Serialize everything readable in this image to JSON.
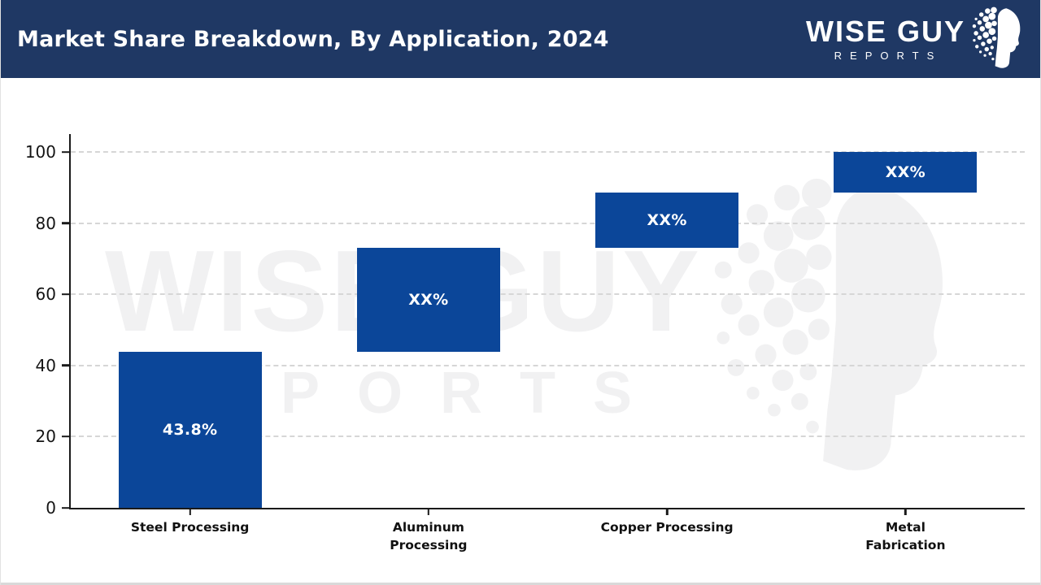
{
  "header": {
    "title": "Market Share Breakdown, By Application, 2024",
    "logo": {
      "line1": "WISE GUY",
      "line2": "REPORTS"
    }
  },
  "watermark": {
    "line1": "WISE GUY",
    "line2": "REPORTS"
  },
  "colors": {
    "header_bg": "#1f3864",
    "bar": "#0b4699",
    "axis": "#1a1a1a",
    "grid": "#d6d6d6",
    "watermark": "#f1f1f2"
  },
  "chart_data": {
    "type": "bar",
    "subtype": "waterfall-breakdown",
    "title": "Market Share Breakdown, By Application, 2024",
    "categories": [
      "Steel Processing",
      "Aluminum\nProcessing",
      "Copper Processing",
      "Metal Fabrication"
    ],
    "segments": [
      {
        "category": "Steel Processing",
        "start": 0,
        "end": 43.8,
        "value": 43.8,
        "label": "43.8%"
      },
      {
        "category": "Aluminum Processing",
        "start": 43.8,
        "end": 73.0,
        "value": 29.2,
        "label": "XX%"
      },
      {
        "category": "Copper Processing",
        "start": 73.0,
        "end": 88.6,
        "value": 15.6,
        "label": "XX%"
      },
      {
        "category": "Metal Fabrication",
        "start": 88.6,
        "end": 100,
        "value": 11.4,
        "label": "XX%"
      }
    ],
    "ylabel": "",
    "xlabel": "",
    "yticks": [
      0,
      20,
      40,
      60,
      80,
      100
    ],
    "ylim": [
      0,
      105
    ],
    "grid": true,
    "grid_style": "dashed",
    "legend": false,
    "bar_width_fraction": 0.6
  }
}
